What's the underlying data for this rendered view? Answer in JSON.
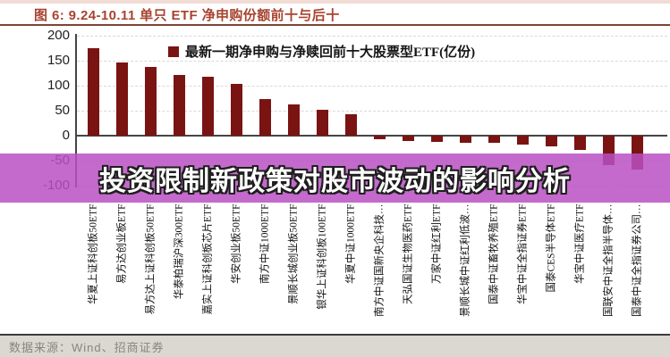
{
  "figure": {
    "title": "图 6: 9.24-10.11 单只 ETF 净申购份额前十与后十",
    "source_label": "数据来源：Wind、招商证券"
  },
  "overlay": {
    "headline": "投资限制新政策对股市波动的影响分析",
    "banner_color": "#c56bcb"
  },
  "chart_data": {
    "type": "bar",
    "legend": [
      "最新一期净申购与净赎回前十大股票型ETF(亿份)"
    ],
    "legend_position": "top-center",
    "bar_color": "#7a1413",
    "grid": "dashed-horizontal",
    "ylabel": "亿份",
    "ylim": [
      -100,
      200
    ],
    "yticks": [
      200,
      150,
      100,
      50,
      0,
      -50,
      -100
    ],
    "categories": [
      "华夏上证科创板50ETF",
      "易方达创业板ETF",
      "易方达上证科创板50ETF",
      "华泰柏瑞沪深300ETF",
      "嘉实上证科创板芯片ETF",
      "华安创业板50ETF",
      "南方中证1000ETF",
      "景顺长城创业板50ETF",
      "银华上证科创板100ETF",
      "华夏中证1000ETF",
      "南方中证国新央企科技…",
      "天弘国证生物医药ETF",
      "万家中证红利ETF",
      "景顺长城中证红利低波…",
      "国泰中证畜牧养殖ETF",
      "华宝中证全指证券ETF",
      "国泰CES半导体ETF",
      "华宝中证医疗ETF",
      "国联安中证全指半导体…",
      "国泰中证全指证券公司…"
    ],
    "values": [
      175,
      146,
      138,
      122,
      117,
      104,
      74,
      62,
      52,
      43,
      -7,
      -10,
      -12,
      -14,
      -15,
      -17,
      -21,
      -29,
      -59,
      -68
    ]
  }
}
